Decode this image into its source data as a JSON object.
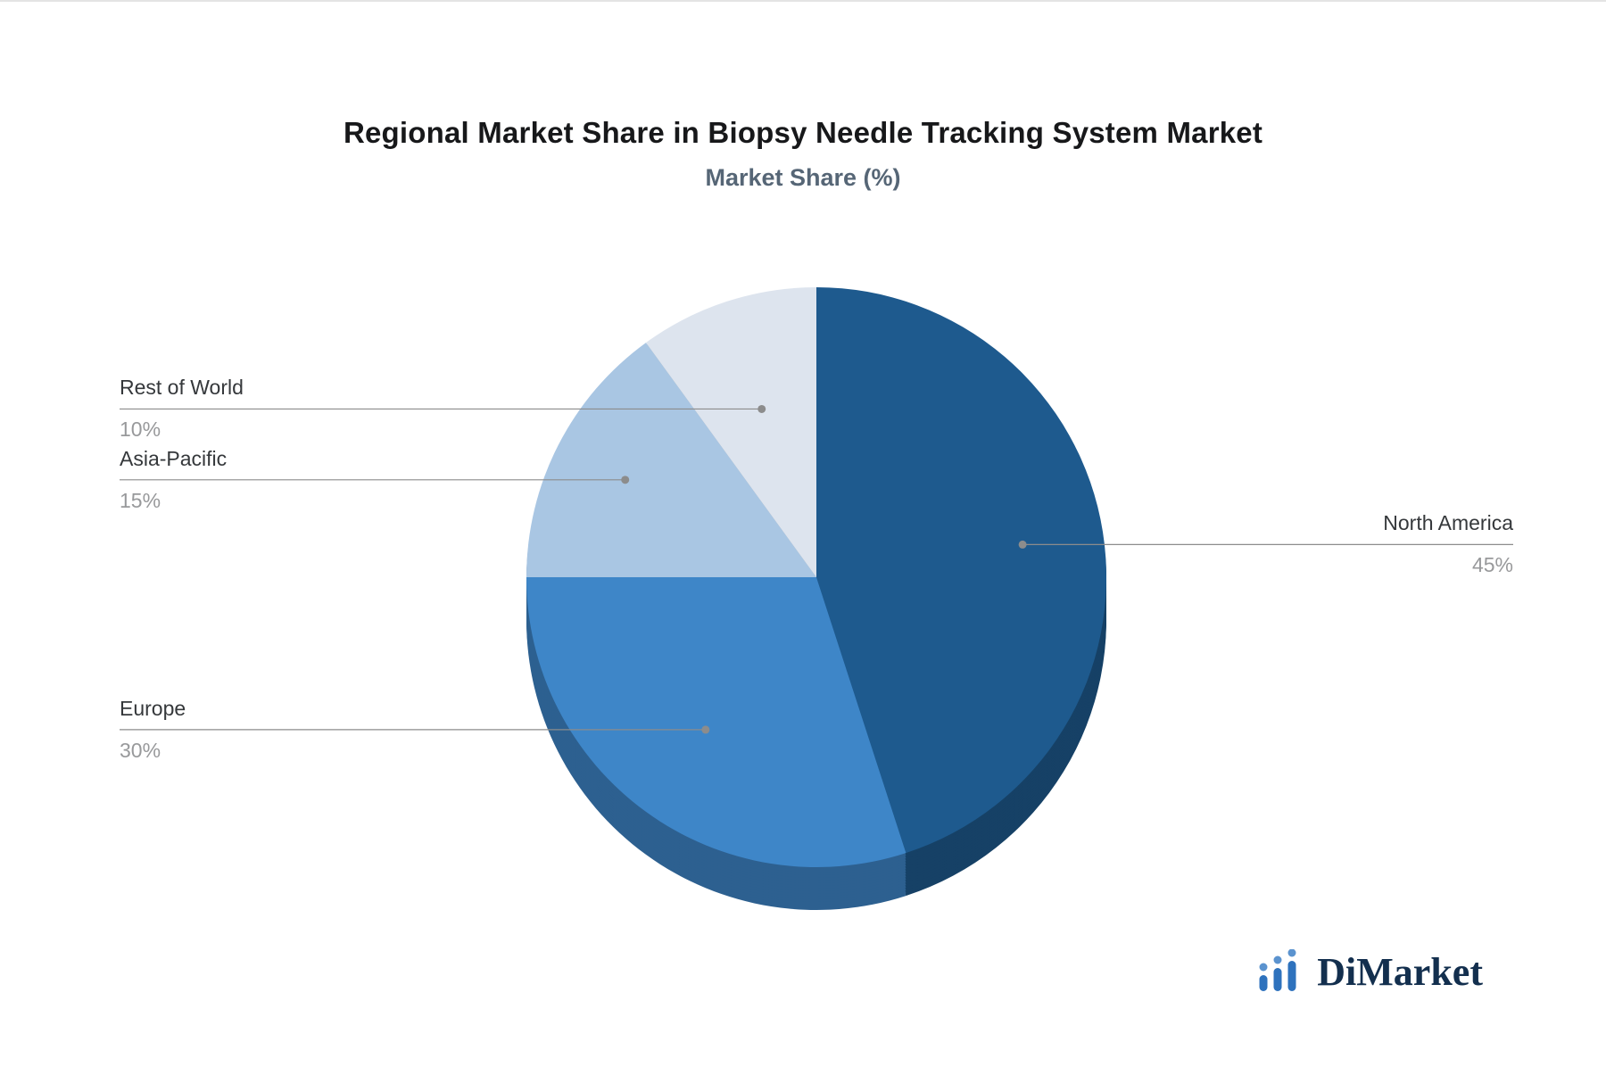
{
  "page": {
    "title": "Regional Market Share in Biopsy Needle Tracking System Market",
    "subtitle": "Market Share (%)"
  },
  "brand": {
    "name": "DiMarket",
    "icon": "bar-chart-icon",
    "text_color": "#132f4e",
    "icon_bar_color": "#2e72bd",
    "icon_dot_color": "#5b93cf"
  },
  "chart_data": {
    "type": "pie",
    "title": "Regional Market Share in Biopsy Needle Tracking System Market",
    "subtitle": "Market Share (%)",
    "unit": "%",
    "effect": "3d",
    "start_angle_deg": 0,
    "direction": "clockwise",
    "slices": [
      {
        "label": "North America",
        "value": 45,
        "display": "45%",
        "color": "#1e5a8e",
        "label_side": "right"
      },
      {
        "label": "Europe",
        "value": 30,
        "display": "30%",
        "color": "#3e86c8",
        "label_side": "left"
      },
      {
        "label": "Asia-Pacific",
        "value": 15,
        "display": "15%",
        "color": "#a9c6e3",
        "label_side": "left"
      },
      {
        "label": "Rest of World",
        "value": 10,
        "display": "10%",
        "color": "#dde4ee",
        "label_side": "left"
      }
    ],
    "leader_line_color": "#8c8c8c",
    "label_name_color": "#35383b",
    "label_value_color": "#98999b",
    "legend": "none",
    "grid": false
  }
}
